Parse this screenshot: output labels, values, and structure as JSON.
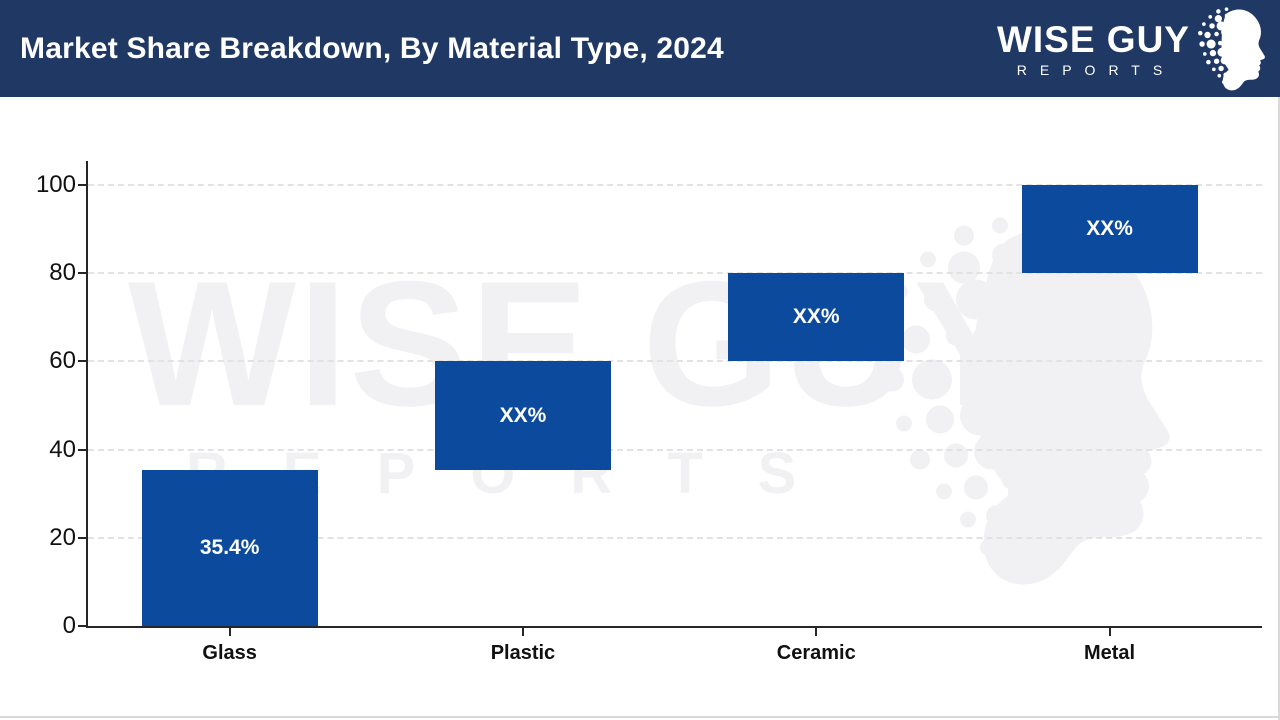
{
  "header": {
    "title": "Market Share Breakdown, By Material Type, 2024",
    "logo": {
      "wordmark": "WISE GUY",
      "subtitle": "REPORTS"
    }
  },
  "watermark": {
    "wordmark": "WISE GUY",
    "subtitle": "REPORTS"
  },
  "chart_data": {
    "type": "bar",
    "subtype": "stacked_waterfall_segments",
    "title": "Market Share Breakdown, By Material Type, 2024",
    "categories": [
      "Glass",
      "Plastic",
      "Ceramic",
      "Metal"
    ],
    "series": [
      {
        "name": "Glass",
        "start": 0,
        "end": 35.4,
        "label": "35.4%"
      },
      {
        "name": "Plastic",
        "start": 35.4,
        "end": 60,
        "label": "XX%"
      },
      {
        "name": "Ceramic",
        "start": 60,
        "end": 80,
        "label": "XX%"
      },
      {
        "name": "Metal",
        "start": 80,
        "end": 100,
        "label": "XX%"
      }
    ],
    "xlabel": "",
    "ylabel": "",
    "ylim": [
      0,
      100
    ],
    "yticks": [
      0,
      20,
      40,
      60,
      80,
      100
    ],
    "grid": "dashed-horizontal",
    "legend": "none",
    "bar_color": "#0b4a9c",
    "bar_label_color": "#ffffff"
  },
  "colors": {
    "header_bg": "#1f3864",
    "header_text": "#ffffff",
    "bar": "#0b4a9c",
    "gridline": "#e2e2e2",
    "axis": "#262626",
    "tick_label": "#111111",
    "watermark": "#f1f1f3",
    "page_bg": "#ffffff",
    "edge_line": "#d9d9d9"
  }
}
